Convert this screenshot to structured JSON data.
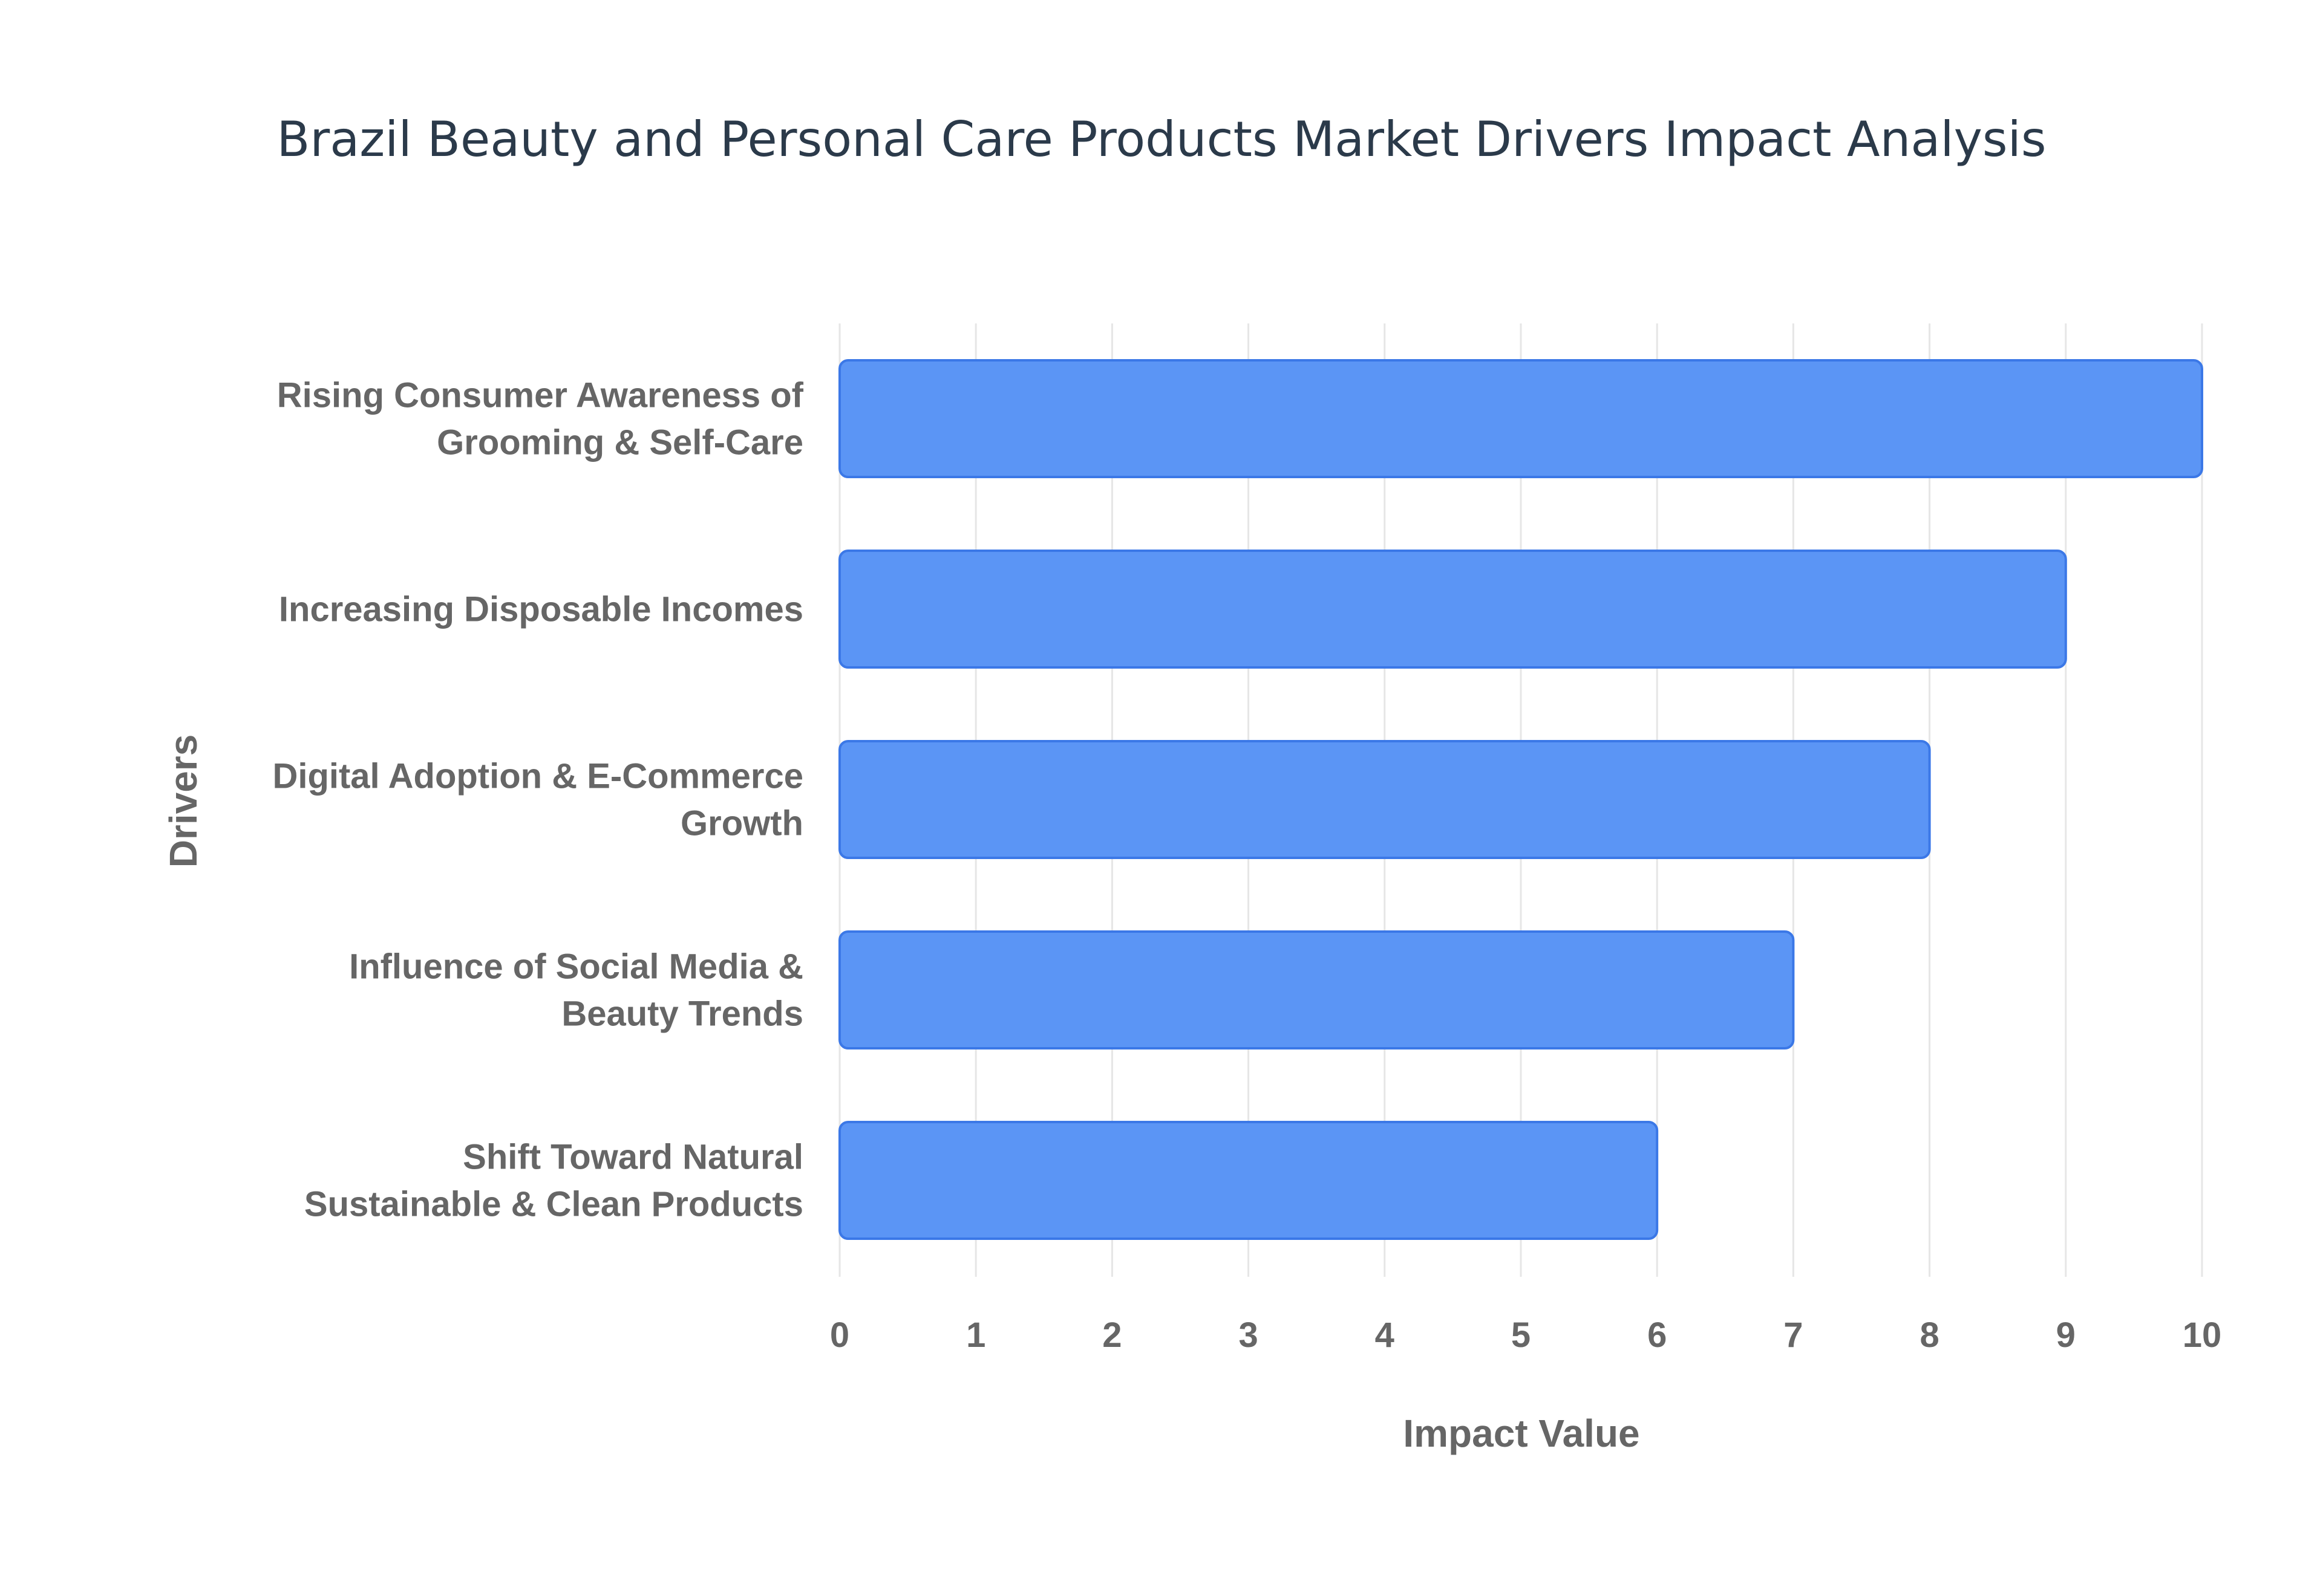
{
  "chart_data": {
    "type": "bar",
    "orientation": "horizontal",
    "title": "Brazil Beauty and Personal Care Products Market Drivers Impact Analysis",
    "xlabel": "Impact Value",
    "ylabel": "Drivers",
    "xlim": [
      0,
      10
    ],
    "x_ticks": [
      "0",
      "1",
      "2",
      "3",
      "4",
      "5",
      "6",
      "7",
      "8",
      "9",
      "10"
    ],
    "grid": true,
    "legend": "none",
    "bar_color": "#5b95f5",
    "bar_border_color": "#3b78e7",
    "categories": [
      [
        "Rising Consumer Awareness of",
        "Grooming & Self-Care"
      ],
      [
        "Increasing Disposable Incomes"
      ],
      [
        "Digital Adoption & E-Commerce",
        "Growth"
      ],
      [
        "Influence of Social Media &",
        "Beauty Trends"
      ],
      [
        "Shift Toward Natural",
        "Sustainable & Clean Products"
      ]
    ],
    "values": [
      10,
      9,
      8,
      7,
      6
    ]
  }
}
